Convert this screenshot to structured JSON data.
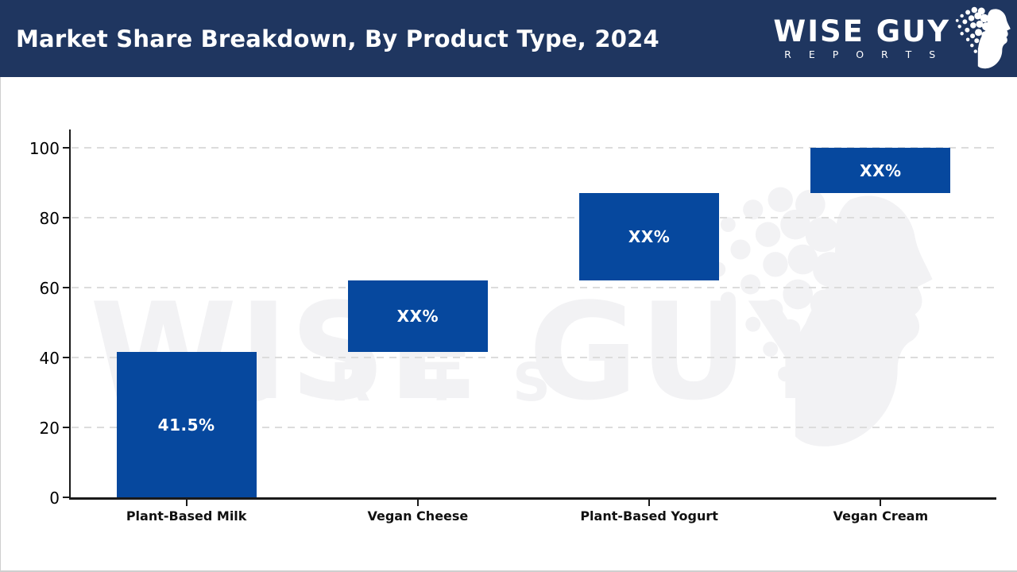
{
  "header": {
    "title": "Market Share Breakdown, By Product Type, 2024",
    "logo": {
      "line1": "WISE GUY",
      "line2": "R E P O R T S"
    }
  },
  "watermark": {
    "line1": "WISE GUY",
    "line2": "P O R T S"
  },
  "colors": {
    "header_bg": "#1f3660",
    "bar": "#06489e",
    "grid": "#dcdcdc",
    "axis": "#1a1a1a",
    "watermark": "#f2f2f4",
    "bar_label": "#ffffff"
  },
  "chart_data": {
    "type": "bar",
    "variant": "waterfall",
    "title": "Market Share Breakdown, By Product Type, 2024",
    "categories": [
      "Plant-Based Milk",
      "Vegan Cheese",
      "Plant-Based Yogurt",
      "Vegan Cream"
    ],
    "segments": [
      {
        "category": "Plant-Based Milk",
        "start": 0,
        "end": 41.5,
        "label": "41.5%"
      },
      {
        "category": "Vegan Cheese",
        "start": 41.5,
        "end": 62,
        "label": "XX%"
      },
      {
        "category": "Plant-Based Yogurt",
        "start": 62,
        "end": 87,
        "label": "XX%"
      },
      {
        "category": "Vegan Cream",
        "start": 87,
        "end": 100,
        "label": "XX%"
      }
    ],
    "xlabel": "",
    "ylabel": "",
    "ylim": [
      0,
      105
    ],
    "yticks": [
      0,
      20,
      40,
      60,
      80,
      100
    ],
    "grid": "dashed-horizontal",
    "legend": false,
    "bar_color": "#06489e",
    "label_color": "#ffffff"
  }
}
